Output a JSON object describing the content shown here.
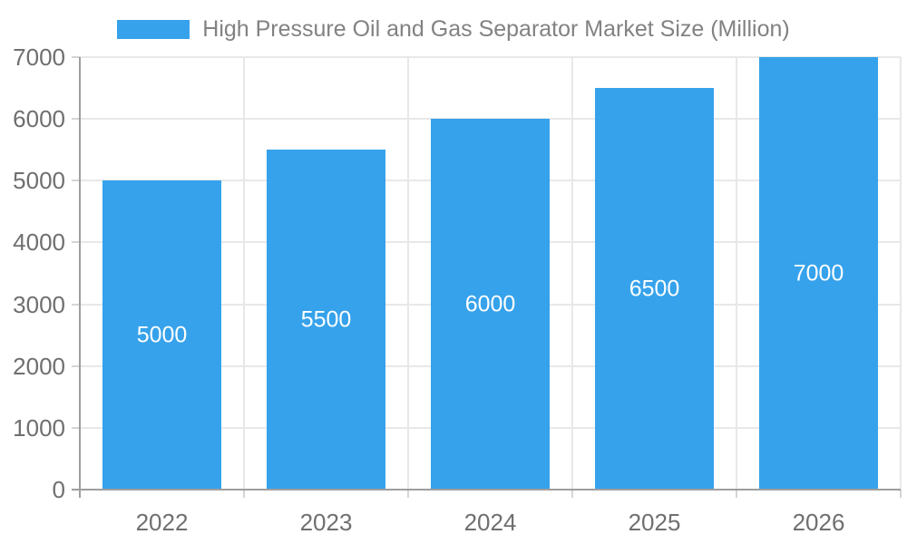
{
  "chart_data": {
    "type": "bar",
    "title": "High Pressure Oil and Gas Separator Market Size (Million)",
    "categories": [
      "2022",
      "2023",
      "2024",
      "2025",
      "2026"
    ],
    "values": [
      5000,
      5500,
      6000,
      6500,
      7000
    ],
    "series": [
      {
        "name": "High Pressure Oil and Gas Separator Market Size (Million)",
        "values": [
          5000,
          5500,
          6000,
          6500,
          7000
        ]
      }
    ],
    "xlabel": "",
    "ylabel": "",
    "ylim": [
      0,
      7000
    ],
    "y_ticks": [
      0,
      1000,
      2000,
      3000,
      4000,
      5000,
      6000,
      7000
    ],
    "grid": true,
    "legend_position": "top",
    "bar_label_position": "inside-center",
    "bar_color": "#36A2EB",
    "bar_label_color": "#ffffff"
  },
  "colors": {
    "accent": "#36A2EB",
    "grid": "#e8e8e8",
    "axis_line": "#9e9e9e",
    "tick_text": "#6f6f6f",
    "legend_text": "#828282",
    "background": "#ffffff"
  }
}
